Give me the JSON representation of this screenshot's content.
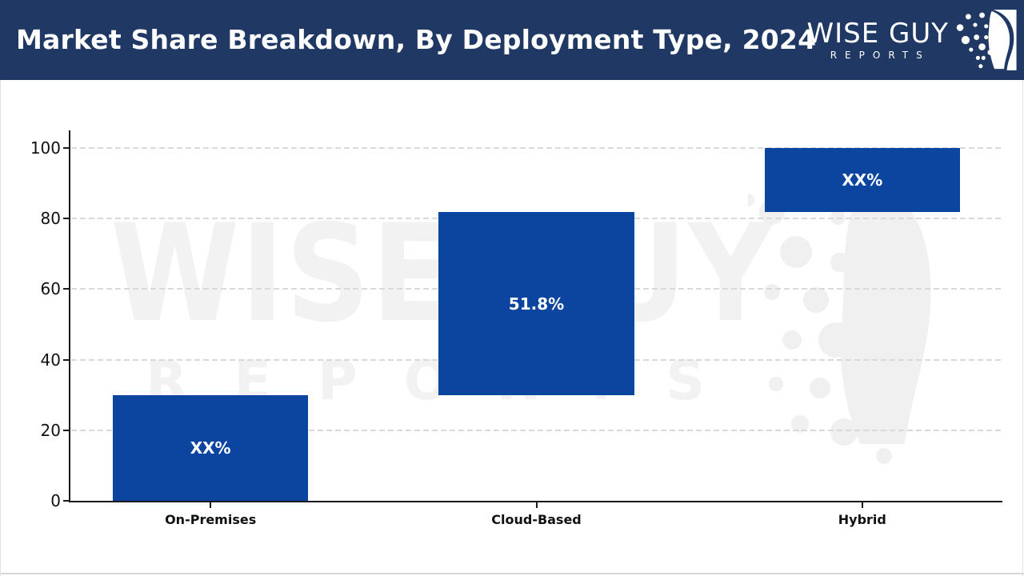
{
  "header": {
    "bg_color": "#1f3864"
  },
  "logo": {
    "name": "WISE GUY",
    "subtitle": "REPORTS",
    "face_icon": "dotted-face-profile"
  },
  "watermark": {
    "line1": "WISE GUY",
    "line2": "REPORTS",
    "color": "#f2f2f2",
    "face_icon": "dotted-face-profile"
  },
  "chart_data": {
    "type": "bar",
    "variant": "waterfall-floating-segments",
    "title": "Market Share Breakdown, By Deployment Type, 2024",
    "categories": [
      "On-Premises",
      "Cloud-Based",
      "Hybrid"
    ],
    "bars": [
      {
        "category": "On-Premises",
        "start": 0,
        "end": 30,
        "label": "XX%"
      },
      {
        "category": "Cloud-Based",
        "start": 30,
        "end": 81.8,
        "label": "51.8%"
      },
      {
        "category": "Hybrid",
        "start": 81.8,
        "end": 100,
        "label": "XX%"
      }
    ],
    "xlabel": "",
    "ylabel": "",
    "yticks": [
      0,
      20,
      40,
      60,
      80,
      100
    ],
    "ylim": [
      0,
      105
    ],
    "bar_color": "#0c45a0",
    "bar_label_color": "#ffffff",
    "axis_color": "#1a1a1a",
    "tick_label_color": "#111111",
    "grid": {
      "axis": "y",
      "style": "dashed",
      "color": "#d9d9d9"
    },
    "legend": "none"
  }
}
